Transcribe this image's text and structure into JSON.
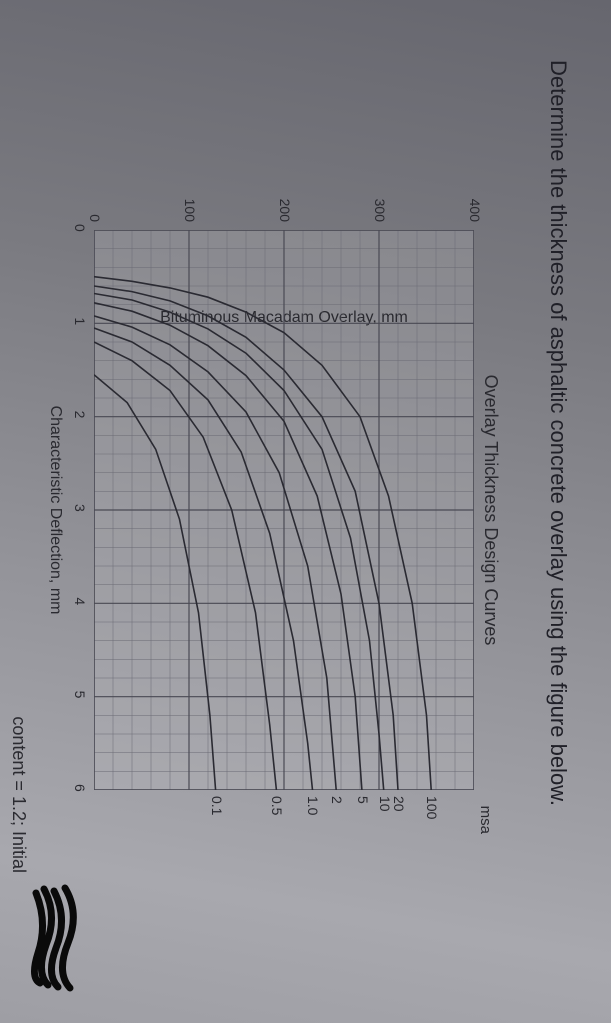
{
  "question_text": "Determine the thickness of asphaltic concrete overlay using the figure below.",
  "chart": {
    "type": "line",
    "title": "Overlay Thickness Design Curves",
    "xlabel": "Characteristic Deflection, mm",
    "ylabel": "Bituminous Macadam Overlay, mm",
    "xlim": [
      0,
      6
    ],
    "ylim": [
      0,
      400
    ],
    "xtick_step_major": 1,
    "xtick_step_minor": 0.2,
    "ytick_step_major": 100,
    "ytick_step_minor": 20,
    "grid_color": "#4a4a54",
    "grid_minor_color": "#6a6a74",
    "background_color": "rgba(190,190,196,0.25)",
    "curve_color": "#2a2a32",
    "curve_width": 1.6,
    "label_fontsize": 16,
    "msa_unit_label": "msa",
    "curves": [
      {
        "msa": "100",
        "points": [
          [
            0.5,
            0
          ],
          [
            0.55,
            40
          ],
          [
            0.62,
            80
          ],
          [
            0.72,
            120
          ],
          [
            0.88,
            160
          ],
          [
            1.1,
            200
          ],
          [
            1.45,
            240
          ],
          [
            2.0,
            280
          ],
          [
            2.85,
            310
          ],
          [
            4.0,
            335
          ],
          [
            5.2,
            350
          ],
          [
            6.0,
            355
          ]
        ]
      },
      {
        "msa": "20",
        "points": [
          [
            0.6,
            0
          ],
          [
            0.66,
            40
          ],
          [
            0.76,
            80
          ],
          [
            0.92,
            120
          ],
          [
            1.15,
            160
          ],
          [
            1.5,
            200
          ],
          [
            2.0,
            240
          ],
          [
            2.8,
            275
          ],
          [
            4.0,
            300
          ],
          [
            5.2,
            315
          ],
          [
            6.0,
            320
          ]
        ]
      },
      {
        "msa": "10",
        "points": [
          [
            0.68,
            0
          ],
          [
            0.75,
            40
          ],
          [
            0.88,
            80
          ],
          [
            1.06,
            120
          ],
          [
            1.32,
            160
          ],
          [
            1.72,
            200
          ],
          [
            2.35,
            240
          ],
          [
            3.3,
            270
          ],
          [
            4.4,
            290
          ],
          [
            5.4,
            300
          ],
          [
            6.0,
            305
          ]
        ]
      },
      {
        "msa": "5",
        "points": [
          [
            0.78,
            0
          ],
          [
            0.87,
            40
          ],
          [
            1.02,
            80
          ],
          [
            1.24,
            120
          ],
          [
            1.56,
            160
          ],
          [
            2.05,
            200
          ],
          [
            2.85,
            235
          ],
          [
            3.9,
            260
          ],
          [
            5.0,
            275
          ],
          [
            6.0,
            282
          ]
        ]
      },
      {
        "msa": "2",
        "points": [
          [
            0.92,
            0
          ],
          [
            1.04,
            40
          ],
          [
            1.23,
            80
          ],
          [
            1.52,
            120
          ],
          [
            1.95,
            160
          ],
          [
            2.6,
            195
          ],
          [
            3.6,
            225
          ],
          [
            4.8,
            245
          ],
          [
            6.0,
            255
          ]
        ]
      },
      {
        "msa": "1.0",
        "points": [
          [
            1.05,
            0
          ],
          [
            1.2,
            40
          ],
          [
            1.45,
            80
          ],
          [
            1.82,
            120
          ],
          [
            2.38,
            155
          ],
          [
            3.25,
            185
          ],
          [
            4.4,
            210
          ],
          [
            5.5,
            225
          ],
          [
            6.0,
            230
          ]
        ]
      },
      {
        "msa": "0.5",
        "points": [
          [
            1.2,
            0
          ],
          [
            1.4,
            40
          ],
          [
            1.72,
            80
          ],
          [
            2.22,
            115
          ],
          [
            3.0,
            145
          ],
          [
            4.1,
            170
          ],
          [
            5.3,
            185
          ],
          [
            6.0,
            192
          ]
        ]
      },
      {
        "msa": "0.1",
        "points": [
          [
            1.55,
            0
          ],
          [
            1.85,
            35
          ],
          [
            2.35,
            65
          ],
          [
            3.1,
            90
          ],
          [
            4.1,
            110
          ],
          [
            5.2,
            122
          ],
          [
            6.0,
            128
          ]
        ]
      }
    ]
  },
  "partial_cutoff_text": "content = 1.2; Initial",
  "colors": {
    "page_text": "#2a2a30",
    "scribble": "#0a0a0a"
  }
}
